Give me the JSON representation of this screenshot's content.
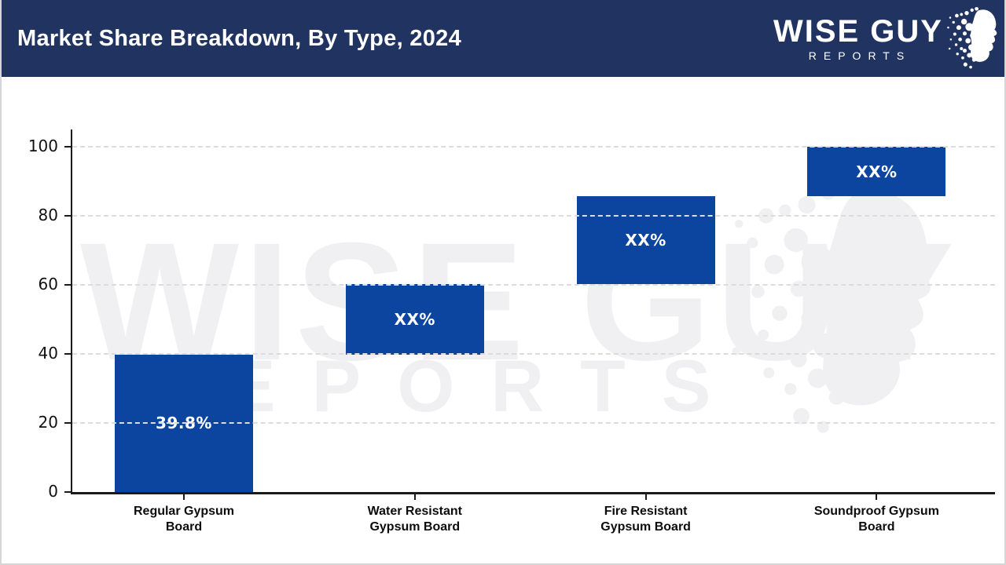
{
  "header": {
    "title": "Market Share Breakdown, By Type, 2024",
    "background_color": "#213461",
    "logo": {
      "line1": "WISE GUY",
      "line2": "REPORTS",
      "head_icon": "dotted-head-profile"
    }
  },
  "watermark": {
    "line1": "WISE GUY",
    "line2": "REPORTS",
    "head_icon": "dotted-head-profile"
  },
  "chart_data": {
    "type": "bar",
    "variant": "stepped-waterfall-share",
    "title": "Market Share Breakdown, By Type, 2024",
    "xlabel": "",
    "ylabel": "",
    "ylim": [
      0,
      100
    ],
    "yticks": [
      0,
      20,
      40,
      60,
      80,
      100
    ],
    "grid": "horizontal-dashed",
    "legend": "none",
    "bar_color": "#0b45a0",
    "value_label_color": "#ffffff",
    "categories": [
      "Regular Gypsum Board",
      "Water Resistant Gypsum Board",
      "Fire Resistant Gypsum Board",
      "Soundproof Gypsum Board"
    ],
    "bars": [
      {
        "category": "Regular Gypsum Board",
        "category_display": "Regular Gypsum\nBoard",
        "start": 0,
        "end": 39.8,
        "label": "39.8%"
      },
      {
        "category": "Water Resistant Gypsum Board",
        "category_display": "Water Resistant\nGypsum Board",
        "start": 39.8,
        "end": 60.3,
        "label": "XX%"
      },
      {
        "category": "Fire Resistant Gypsum Board",
        "category_display": "Fire Resistant\nGypsum Board",
        "start": 60.3,
        "end": 85.6,
        "label": "XX%"
      },
      {
        "category": "Soundproof Gypsum Board",
        "category_display": "Soundproof Gypsum\nBoard",
        "start": 85.6,
        "end": 100,
        "label": "XX%"
      }
    ]
  }
}
